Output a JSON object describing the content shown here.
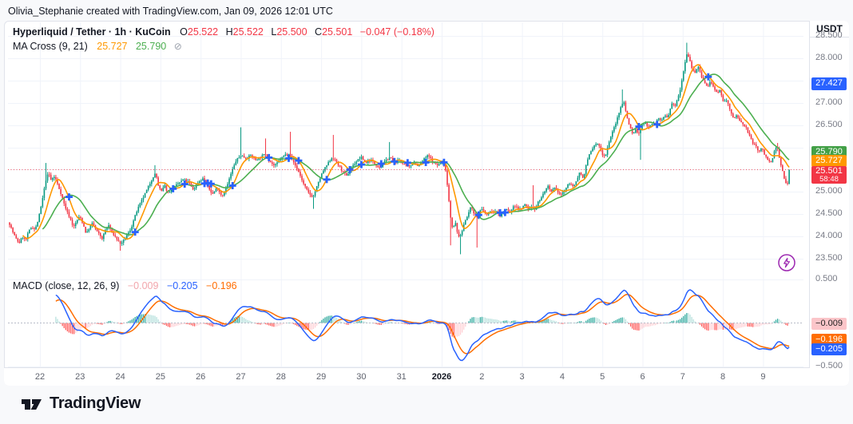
{
  "header": {
    "attribution": "Olivia_Stephanie created with TradingView.com, Jan 09, 2026 12:01 UTC"
  },
  "legend": {
    "title": "Hyperliquid / Tether · 1h · KuCoin",
    "ohlc": [
      {
        "k": "O",
        "v": "25.522"
      },
      {
        "k": "H",
        "v": "25.522"
      },
      {
        "k": "L",
        "v": "25.500"
      },
      {
        "k": "C",
        "v": "25.501"
      }
    ],
    "change": "−0.047 (−0.18%)",
    "ma_label": "MA Cross (9, 21)",
    "ma_fast_value": "25.727",
    "ma_slow_value": "25.790",
    "mute_icon": "⊘"
  },
  "macd_legend": {
    "label": "MACD (close, 12, 26, 9)",
    "hist_value": "−0.009",
    "macd_value": "−0.205",
    "signal_value": "−0.196"
  },
  "price_axis": {
    "currency": "USDT",
    "ticks": [
      {
        "label": "28.500",
        "price": 28.5
      },
      {
        "label": "28.000",
        "price": 28.0
      },
      {
        "label": "27.000",
        "price": 27.0
      },
      {
        "label": "26.500",
        "price": 26.5
      },
      {
        "label": "25.000",
        "price": 25.0
      },
      {
        "label": "24.500",
        "price": 24.5
      },
      {
        "label": "24.000",
        "price": 24.0
      },
      {
        "label": "23.500",
        "price": 23.5
      }
    ],
    "badges": {
      "alert": "27.427",
      "ma_slow": "25.790",
      "ma_fast": "25.727",
      "last_price": "25.501",
      "countdown": "58:48",
      "macd_hist": "−0.009",
      "macd_signal": "−0.196",
      "macd_line": "−0.205"
    }
  },
  "macd_axis": {
    "ticks": [
      {
        "label": "0.500",
        "value": 0.5
      },
      {
        "label": "−0.500",
        "value": -0.5
      }
    ]
  },
  "time_axis": {
    "labels": [
      {
        "text": "22"
      },
      {
        "text": "23"
      },
      {
        "text": "24"
      },
      {
        "text": "25"
      },
      {
        "text": "26"
      },
      {
        "text": "27"
      },
      {
        "text": "28"
      },
      {
        "text": "29"
      },
      {
        "text": "30"
      },
      {
        "text": "31"
      },
      {
        "text": "2026",
        "bold": true
      },
      {
        "text": "2"
      },
      {
        "text": "3"
      },
      {
        "text": "4"
      },
      {
        "text": "5"
      },
      {
        "text": "6"
      },
      {
        "text": "7"
      },
      {
        "text": "8"
      },
      {
        "text": "9"
      }
    ]
  },
  "footer": {
    "brand": "TradingView"
  },
  "colors": {
    "up": "#089981",
    "down": "#f23645",
    "ma_fast": "#ff9800",
    "ma_slow": "#4caf50",
    "cross_marker": "#2962ff",
    "macd_line": "#2962ff",
    "macd_signal": "#ff6d00",
    "hist_pos_rise": "#26a69a",
    "hist_pos_fall": "#b2dfdb",
    "hist_neg_fall": "#ff5252",
    "hist_neg_rise": "#ffcdd2",
    "badge_alert": "#2962ff",
    "badge_ma_slow": "#43a047",
    "badge_ma_fast": "#ff9800",
    "badge_last": "#f23645",
    "badge_hist_bg": "#fbc5c9",
    "badge_hist_text": "#212121",
    "grid": "#f0f3fa",
    "border": "#e0e3eb",
    "axis_text": "#787b86",
    "last_price_line": "#f23645",
    "zero_line": "#b8bcc9",
    "lightning": "#9c27b0"
  },
  "chart_data": {
    "type": "candlestick",
    "symbol": "Hyperliquid / Tether",
    "exchange": "KuCoin",
    "interval": "1h",
    "last_candle": {
      "open": 25.522,
      "high": 25.522,
      "low": 25.5,
      "close": 25.501,
      "change": -0.047,
      "change_pct": -0.18
    },
    "indicators": [
      {
        "name": "MA Cross",
        "params": [
          9,
          21
        ],
        "values": [
          25.727,
          25.79
        ]
      },
      {
        "name": "MACD",
        "params": [
          "close",
          12,
          26,
          9
        ],
        "values": {
          "histogram": -0.009,
          "macd": -0.205,
          "signal": -0.196
        }
      }
    ],
    "alert_price": 27.427,
    "price_ylim": [
      23.249,
      28.807
    ],
    "macd_ylim": [
      -0.509,
      0.518
    ],
    "x_axis": {
      "x0": 50,
      "dx": 50.3
    },
    "candle_step": 2.068,
    "x_range": [
      12,
      990
    ],
    "price_path": [
      [
        8,
        24.35
      ],
      [
        12,
        24.28
      ],
      [
        16,
        24.1
      ],
      [
        20,
        23.95
      ],
      [
        24,
        23.85
      ],
      [
        28,
        24.0
      ],
      [
        32,
        23.9
      ],
      [
        36,
        24.12
      ],
      [
        40,
        24.22
      ],
      [
        44,
        24.15
      ],
      [
        48,
        24.38
      ],
      [
        52,
        24.72
      ],
      [
        55,
        25.02
      ],
      [
        58,
        25.32
      ],
      [
        61,
        25.42
      ],
      [
        64,
        25.25
      ],
      [
        67,
        25.35
      ],
      [
        70,
        25.28
      ],
      [
        73,
        25.12
      ],
      [
        76,
        24.98
      ],
      [
        80,
        24.75
      ],
      [
        84,
        24.55
      ],
      [
        88,
        24.4
      ],
      [
        92,
        24.2
      ],
      [
        96,
        24.35
      ],
      [
        100,
        24.45
      ],
      [
        104,
        24.28
      ],
      [
        108,
        24.05
      ],
      [
        112,
        24.2
      ],
      [
        116,
        24.3
      ],
      [
        120,
        24.15
      ],
      [
        124,
        24.05
      ],
      [
        128,
        23.95
      ],
      [
        132,
        24.15
      ],
      [
        136,
        24.25
      ],
      [
        140,
        24.1
      ],
      [
        144,
        24.0
      ],
      [
        148,
        23.9
      ],
      [
        152,
        23.82
      ],
      [
        156,
        23.95
      ],
      [
        160,
        24.05
      ],
      [
        164,
        24.18
      ],
      [
        168,
        24.4
      ],
      [
        172,
        24.6
      ],
      [
        176,
        24.75
      ],
      [
        180,
        24.9
      ],
      [
        184,
        25.05
      ],
      [
        188,
        25.2
      ],
      [
        192,
        25.35
      ],
      [
        195,
        25.42
      ],
      [
        198,
        25.15
      ],
      [
        202,
        25.0
      ],
      [
        206,
        25.15
      ],
      [
        210,
        24.98
      ],
      [
        214,
        25.05
      ],
      [
        219,
        25.12
      ],
      [
        224,
        25.2
      ],
      [
        230,
        25.28
      ],
      [
        236,
        25.22
      ],
      [
        242,
        25.05
      ],
      [
        248,
        25.22
      ],
      [
        254,
        25.3
      ],
      [
        260,
        25.12
      ],
      [
        266,
        24.95
      ],
      [
        272,
        25.1
      ],
      [
        278,
        24.9
      ],
      [
        284,
        25.12
      ],
      [
        290,
        25.45
      ],
      [
        296,
        25.72
      ],
      [
        302,
        25.82
      ],
      [
        308,
        25.75
      ],
      [
        314,
        25.82
      ],
      [
        320,
        25.72
      ],
      [
        326,
        25.78
      ],
      [
        332,
        25.85
      ],
      [
        338,
        25.68
      ],
      [
        344,
        25.58
      ],
      [
        350,
        25.72
      ],
      [
        356,
        25.82
      ],
      [
        362,
        25.88
      ],
      [
        368,
        25.65
      ],
      [
        374,
        25.45
      ],
      [
        380,
        25.18
      ],
      [
        386,
        24.98
      ],
      [
        392,
        24.88
      ],
      [
        398,
        25.18
      ],
      [
        404,
        25.45
      ],
      [
        410,
        25.62
      ],
      [
        416,
        25.78
      ],
      [
        422,
        25.65
      ],
      [
        428,
        25.48
      ],
      [
        434,
        25.35
      ],
      [
        440,
        25.55
      ],
      [
        446,
        25.68
      ],
      [
        452,
        25.78
      ],
      [
        458,
        25.65
      ],
      [
        464,
        25.72
      ],
      [
        470,
        25.62
      ],
      [
        476,
        25.55
      ],
      [
        482,
        25.68
      ],
      [
        488,
        25.78
      ],
      [
        494,
        25.65
      ],
      [
        500,
        25.72
      ],
      [
        506,
        25.62
      ],
      [
        512,
        25.55
      ],
      [
        518,
        25.68
      ],
      [
        524,
        25.58
      ],
      [
        530,
        25.72
      ],
      [
        536,
        25.82
      ],
      [
        542,
        25.68
      ],
      [
        548,
        25.6
      ],
      [
        554,
        25.68
      ],
      [
        558,
        25.5
      ],
      [
        561,
        25.0
      ],
      [
        564,
        24.45
      ],
      [
        567,
        24.15
      ],
      [
        570,
        24.32
      ],
      [
        573,
        24.05
      ],
      [
        576,
        23.98
      ],
      [
        579,
        24.15
      ],
      [
        582,
        24.35
      ],
      [
        586,
        24.5
      ],
      [
        590,
        24.68
      ],
      [
        594,
        24.5
      ],
      [
        598,
        24.42
      ],
      [
        602,
        24.62
      ],
      [
        606,
        24.55
      ],
      [
        610,
        24.48
      ],
      [
        614,
        24.58
      ],
      [
        618,
        24.52
      ],
      [
        622,
        24.58
      ],
      [
        626,
        24.45
      ],
      [
        630,
        24.55
      ],
      [
        634,
        24.62
      ],
      [
        638,
        24.52
      ],
      [
        642,
        24.65
      ],
      [
        646,
        24.7
      ],
      [
        650,
        24.58
      ],
      [
        654,
        24.65
      ],
      [
        658,
        24.72
      ],
      [
        662,
        24.6
      ],
      [
        666,
        24.68
      ],
      [
        670,
        24.62
      ],
      [
        674,
        24.78
      ],
      [
        678,
        24.88
      ],
      [
        682,
        25.02
      ],
      [
        686,
        25.12
      ],
      [
        690,
        24.98
      ],
      [
        694,
        25.08
      ],
      [
        698,
        25.02
      ],
      [
        702,
        24.92
      ],
      [
        706,
        25.02
      ],
      [
        710,
        25.12
      ],
      [
        714,
        25.22
      ],
      [
        718,
        25.08
      ],
      [
        722,
        25.28
      ],
      [
        726,
        25.45
      ],
      [
        730,
        25.3
      ],
      [
        734,
        25.6
      ],
      [
        738,
        25.85
      ],
      [
        742,
        25.98
      ],
      [
        746,
        26.08
      ],
      [
        750,
        26.05
      ],
      [
        754,
        25.85
      ],
      [
        758,
        25.8
      ],
      [
        762,
        26.1
      ],
      [
        766,
        26.3
      ],
      [
        770,
        26.5
      ],
      [
        774,
        26.7
      ],
      [
        778,
        26.95
      ],
      [
        781,
        27.05
      ],
      [
        784,
        26.75
      ],
      [
        788,
        26.5
      ],
      [
        792,
        26.3
      ],
      [
        796,
        26.4
      ],
      [
        800,
        26.3
      ],
      [
        804,
        26.5
      ],
      [
        808,
        26.55
      ],
      [
        812,
        26.45
      ],
      [
        816,
        26.55
      ],
      [
        820,
        26.5
      ],
      [
        824,
        26.65
      ],
      [
        828,
        26.6
      ],
      [
        832,
        26.72
      ],
      [
        836,
        26.65
      ],
      [
        839,
        26.85
      ],
      [
        842,
        27.0
      ],
      [
        845,
        26.9
      ],
      [
        848,
        27.1
      ],
      [
        851,
        27.25
      ],
      [
        854,
        27.55
      ],
      [
        857,
        27.85
      ],
      [
        860,
        28.12
      ],
      [
        863,
        28.0
      ],
      [
        866,
        27.8
      ],
      [
        870,
        27.68
      ],
      [
        874,
        27.82
      ],
      [
        878,
        27.6
      ],
      [
        882,
        27.45
      ],
      [
        886,
        27.35
      ],
      [
        890,
        27.5
      ],
      [
        894,
        27.3
      ],
      [
        898,
        27.2
      ],
      [
        902,
        27.28
      ],
      [
        906,
        27.0
      ],
      [
        910,
        27.08
      ],
      [
        914,
        26.82
      ],
      [
        918,
        26.65
      ],
      [
        922,
        26.72
      ],
      [
        926,
        26.6
      ],
      [
        930,
        26.52
      ],
      [
        934,
        26.45
      ],
      [
        938,
        26.28
      ],
      [
        942,
        26.1
      ],
      [
        946,
        26.05
      ],
      [
        950,
        25.9
      ],
      [
        954,
        25.98
      ],
      [
        958,
        25.82
      ],
      [
        962,
        25.72
      ],
      [
        966,
        25.63
      ],
      [
        970,
        25.95
      ],
      [
        973,
        26.02
      ],
      [
        976,
        25.75
      ],
      [
        980,
        25.45
      ],
      [
        983,
        25.2
      ],
      [
        986,
        25.18
      ],
      [
        988,
        25.4
      ],
      [
        990,
        25.501
      ]
    ],
    "wick_extremes": [
      [
        58,
        25.65,
        "h"
      ],
      [
        150,
        23.68,
        "l"
      ],
      [
        195,
        25.6,
        "h"
      ],
      [
        302,
        26.45,
        "h"
      ],
      [
        333,
        26.2,
        "h"
      ],
      [
        363,
        26.35,
        "h"
      ],
      [
        392,
        24.62,
        "l"
      ],
      [
        417,
        26.28,
        "h"
      ],
      [
        488,
        26.12,
        "h"
      ],
      [
        565,
        23.8,
        "l"
      ],
      [
        577,
        23.6,
        "l"
      ],
      [
        598,
        23.75,
        "l"
      ],
      [
        668,
        25.15,
        "h"
      ],
      [
        780,
        27.3,
        "h"
      ],
      [
        802,
        25.72,
        "l"
      ],
      [
        860,
        28.35,
        "h"
      ],
      [
        973,
        26.1,
        "h"
      ]
    ]
  }
}
